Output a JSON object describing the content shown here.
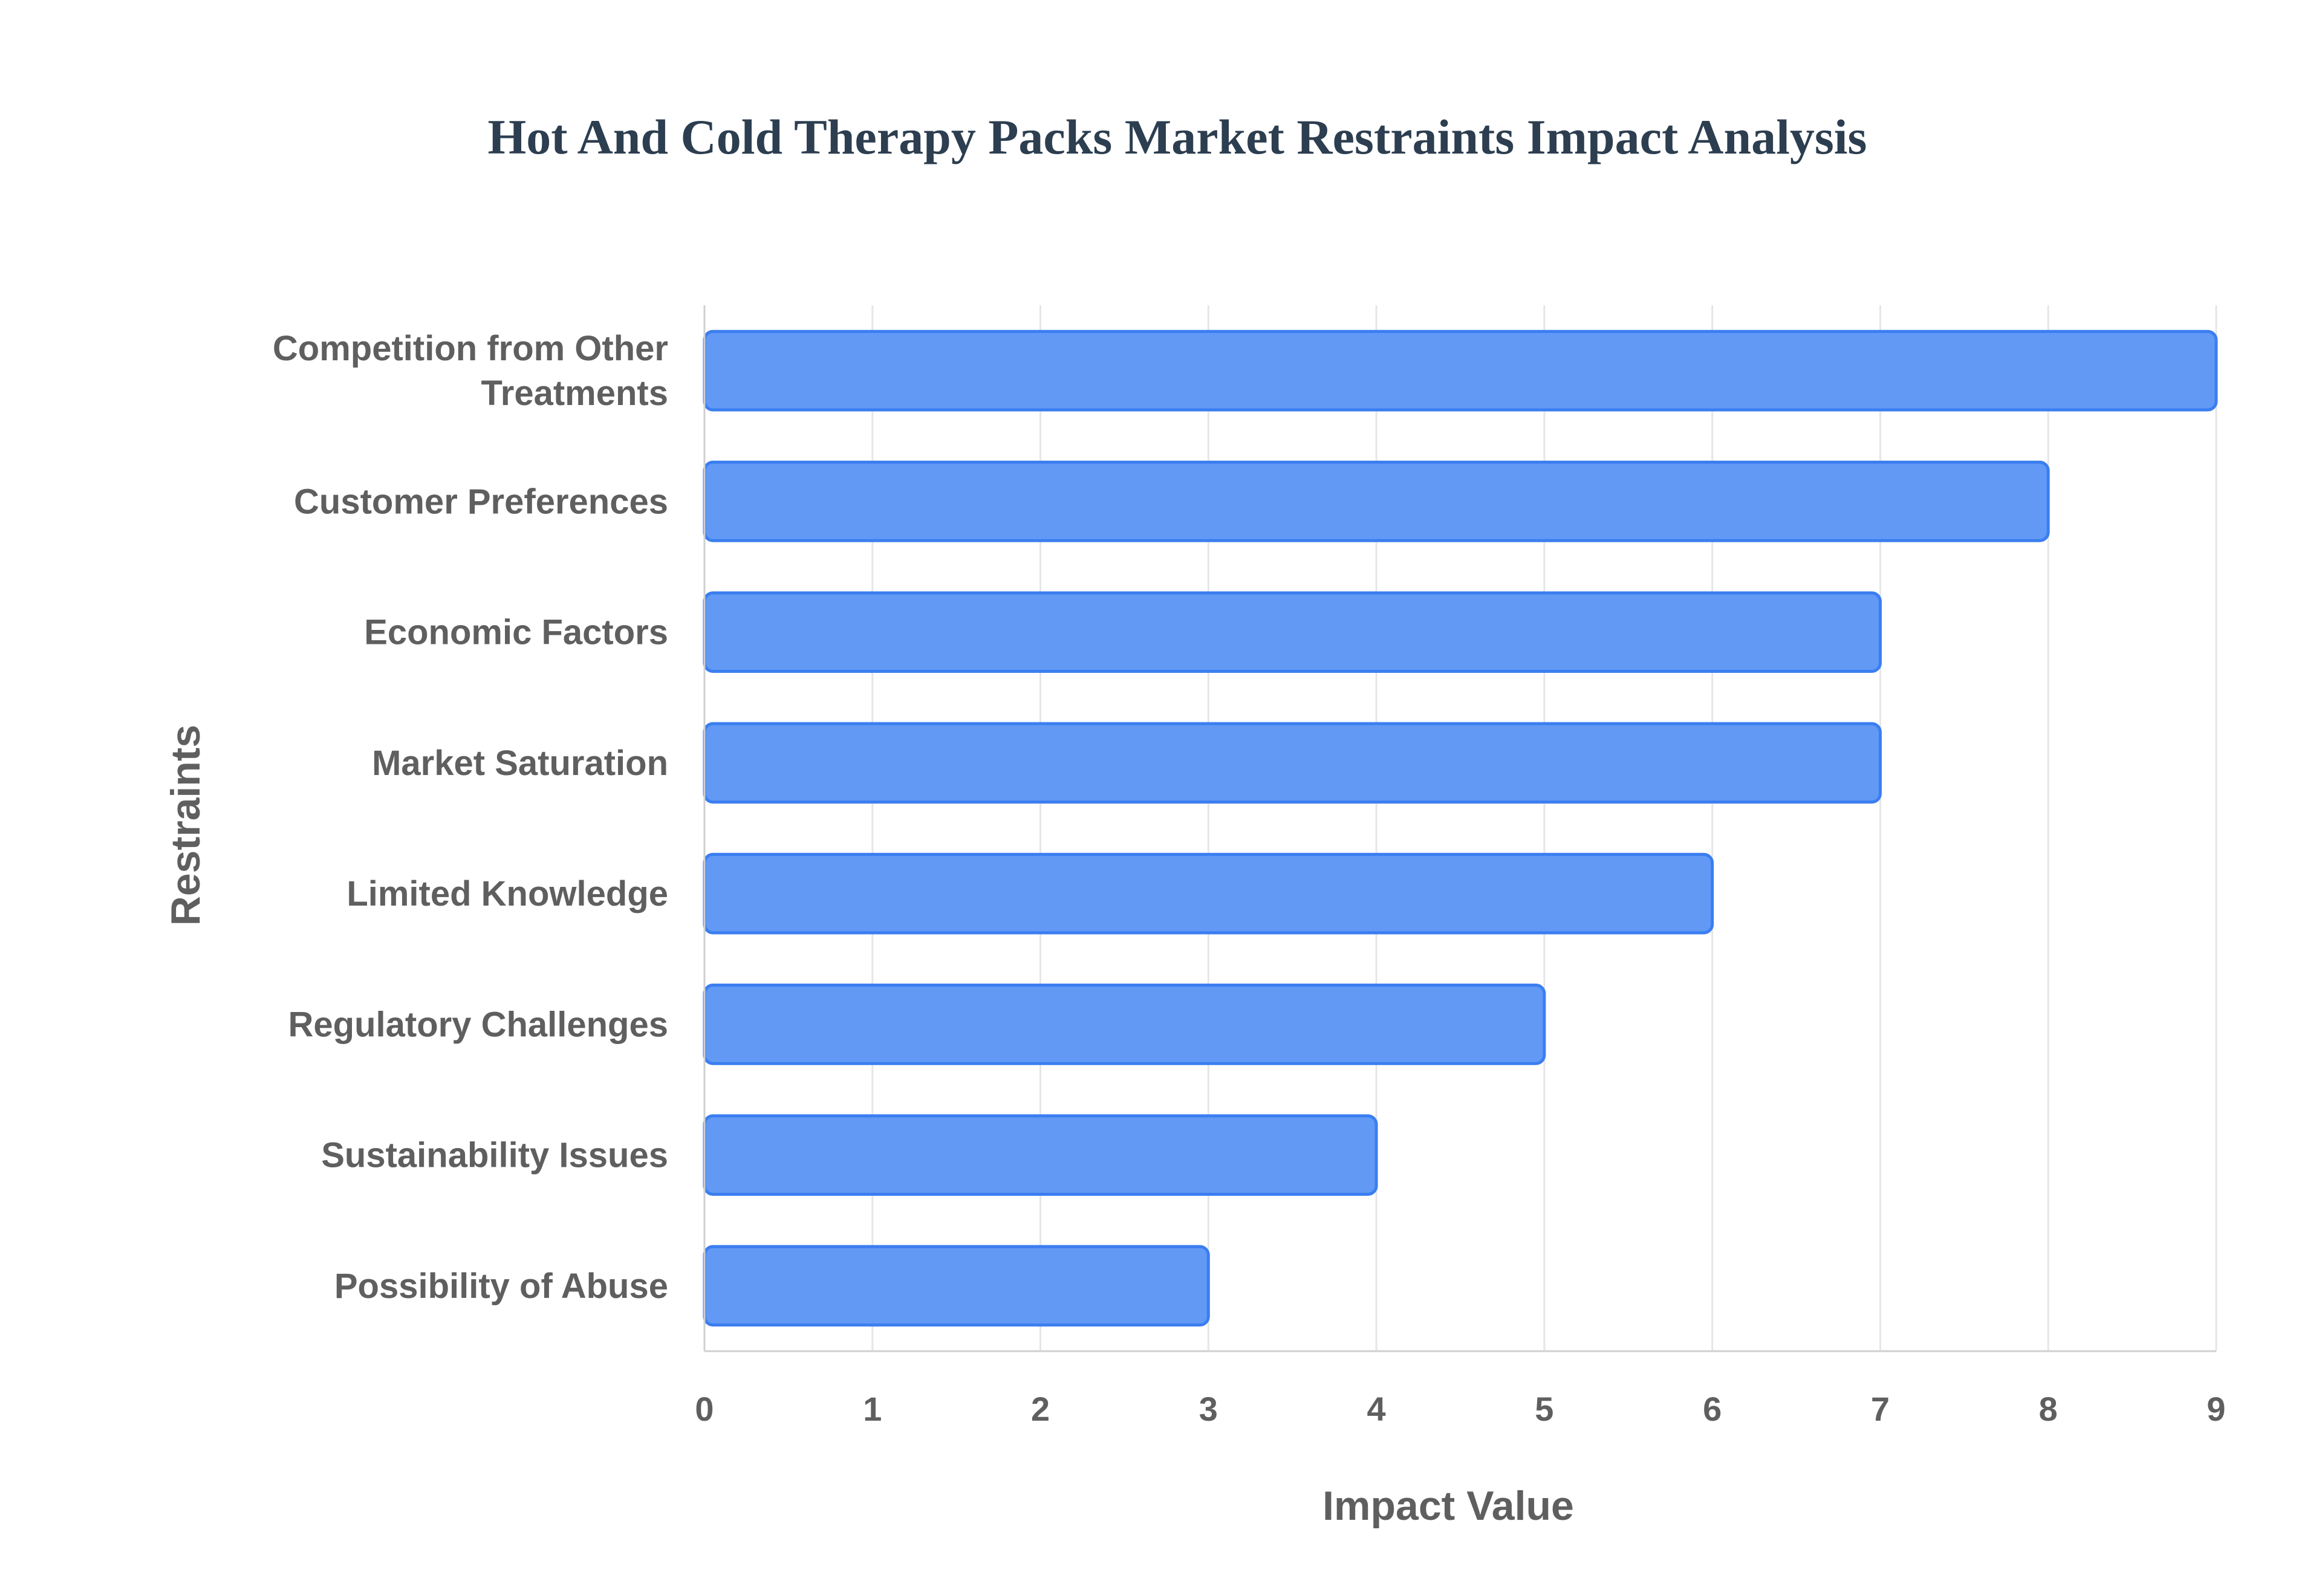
{
  "colors": {
    "bar_fill": "#6199f5",
    "bar_stroke": "#3b7ef0",
    "title": "#2c3e50",
    "label": "#5f5f5f",
    "grid": "#e6e6e6",
    "axis": "#d0d0d0"
  },
  "chart_data": {
    "type": "bar",
    "orientation": "horizontal",
    "title": "Hot And Cold Therapy Packs Market Restraints Impact Analysis",
    "xlabel": "Impact Value",
    "ylabel": "Restraints",
    "categories": [
      [
        "Competition from Other",
        "Treatments"
      ],
      [
        "Customer Preferences"
      ],
      [
        "Economic Factors"
      ],
      [
        "Market Saturation"
      ],
      [
        "Limited Knowledge"
      ],
      [
        "Regulatory Challenges"
      ],
      [
        "Sustainability Issues"
      ],
      [
        "Possibility of Abuse"
      ]
    ],
    "values": [
      9,
      8,
      7,
      7,
      6,
      5,
      4,
      3
    ],
    "xlim": [
      0,
      9
    ],
    "xticks": [
      "0",
      "1",
      "2",
      "3",
      "4",
      "5",
      "6",
      "7",
      "8",
      "9"
    ],
    "grid": true,
    "legend": false
  }
}
